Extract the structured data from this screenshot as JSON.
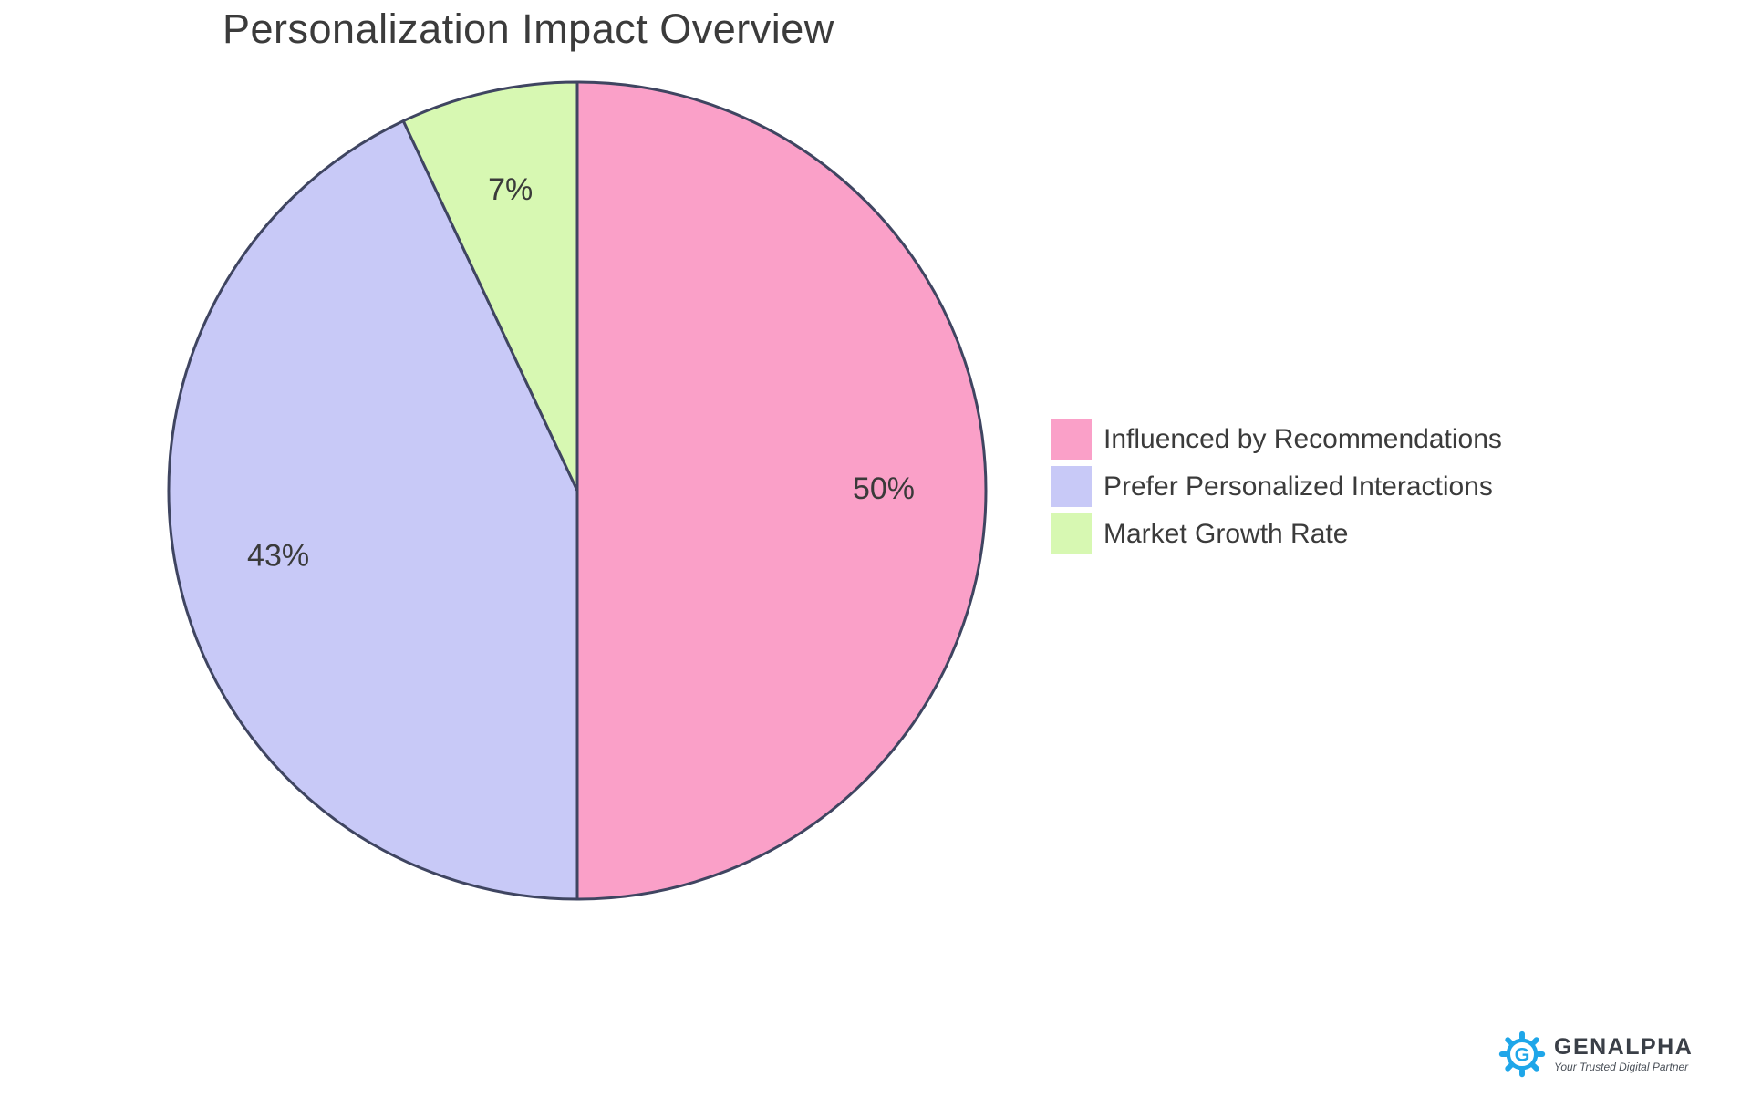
{
  "title": "Personalization Impact Overview",
  "chart_data": {
    "type": "pie",
    "title": "Personalization Impact Overview",
    "labels": [
      "Influenced by Recommendations",
      "Prefer Personalized Interactions",
      "Market Growth Rate"
    ],
    "values": [
      50,
      43,
      7
    ],
    "unit": "%",
    "data_labels": [
      "50%",
      "43%",
      "7%"
    ],
    "colors": [
      "#FAA0C8",
      "#C8C9F7",
      "#D7F8B2"
    ],
    "edge_color": "#3F4561",
    "start_angle": "top",
    "direction": "clockwise",
    "legend_position": "right"
  },
  "legend": {
    "items": [
      {
        "label": "Influenced by Recommendations",
        "color": "#FAA0C8"
      },
      {
        "label": "Prefer Personalized Interactions",
        "color": "#C8C9F7"
      },
      {
        "label": "Market Growth Rate",
        "color": "#D7F8B2"
      }
    ]
  },
  "logo": {
    "name": "GENALPHA",
    "tagline": "Your Trusted Digital Partner",
    "icon": "gear-g-icon",
    "brand_color": "#1EA6E9",
    "text_color": "#3A3F47"
  }
}
